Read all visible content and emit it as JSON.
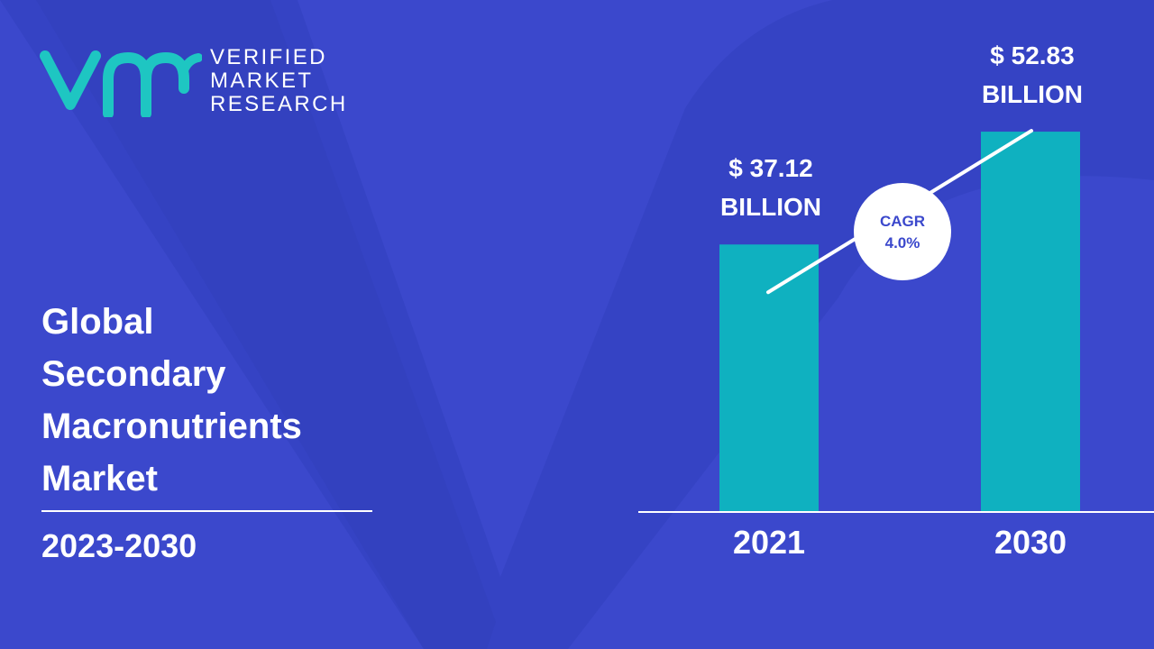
{
  "logo": {
    "lines": [
      "VERIFIED",
      "MARKET",
      "RESEARCH"
    ]
  },
  "title": {
    "lines": [
      "Global",
      "Secondary",
      "Macronutrients",
      "Market"
    ]
  },
  "period": "2023-2030",
  "colors": {
    "background": "#3b48cc",
    "bar": "#0fb1c0",
    "text": "#ffffff",
    "logo": "#1ec6c2"
  },
  "chart_data": {
    "type": "bar",
    "categories": [
      "2021",
      "2030"
    ],
    "values": [
      37.12,
      52.83
    ],
    "data_labels": [
      [
        "$ 37.12",
        "BILLION"
      ],
      [
        "$ 52.83",
        "BILLION"
      ]
    ],
    "annotation": [
      "CAGR",
      "4.0%"
    ],
    "ylim": [
      0,
      62
    ],
    "grid": false
  }
}
